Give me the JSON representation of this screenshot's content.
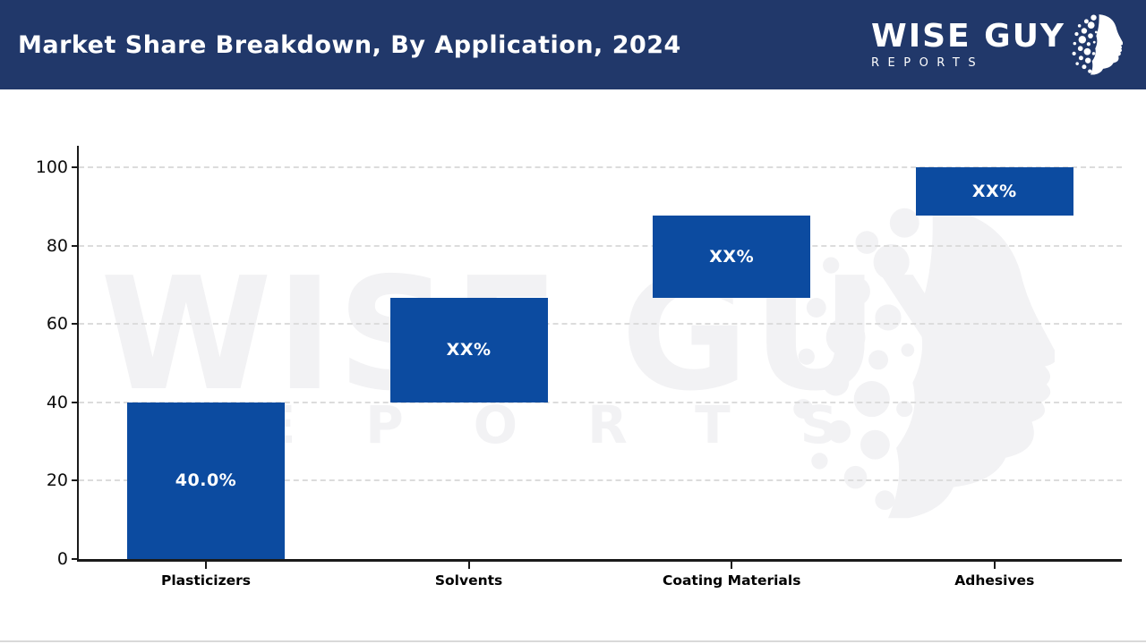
{
  "header": {
    "title": "Market Share Breakdown, By Application, 2024",
    "logo": {
      "line1": "WISE GUY",
      "line2": "REPORTS"
    }
  },
  "watermark": {
    "line1": "WISE GUY",
    "line2": "REPORTS"
  },
  "colors": {
    "header_bg": "#21386A",
    "bar": "#0C4BA0",
    "grid": "#DCDCDC",
    "axis": "#1A1A1A",
    "bar_label_text": "#FFFFFF",
    "watermark": "#F2F2F4"
  },
  "chart_data": {
    "type": "bar",
    "subtype": "waterfall-floating-bars",
    "title": "Market Share Breakdown, By Application, 2024",
    "xlabel": "",
    "ylabel": "",
    "categories": [
      "Plasticizers",
      "Solvents",
      "Coating Materials",
      "Adhesives"
    ],
    "segments": [
      {
        "category": "Plasticizers",
        "start": 0,
        "end": 40,
        "label": "40.0%"
      },
      {
        "category": "Solvents",
        "start": 40,
        "end": 66.7,
        "label": "XX%"
      },
      {
        "category": "Coating Materials",
        "start": 66.7,
        "end": 87.6,
        "label": "XX%"
      },
      {
        "category": "Adhesives",
        "start": 87.6,
        "end": 100,
        "label": "XX%"
      }
    ],
    "yticks": [
      0,
      20,
      40,
      60,
      80,
      100
    ],
    "ylim": [
      0,
      106
    ],
    "grid": "horizontal-dashed",
    "legend": "none"
  }
}
